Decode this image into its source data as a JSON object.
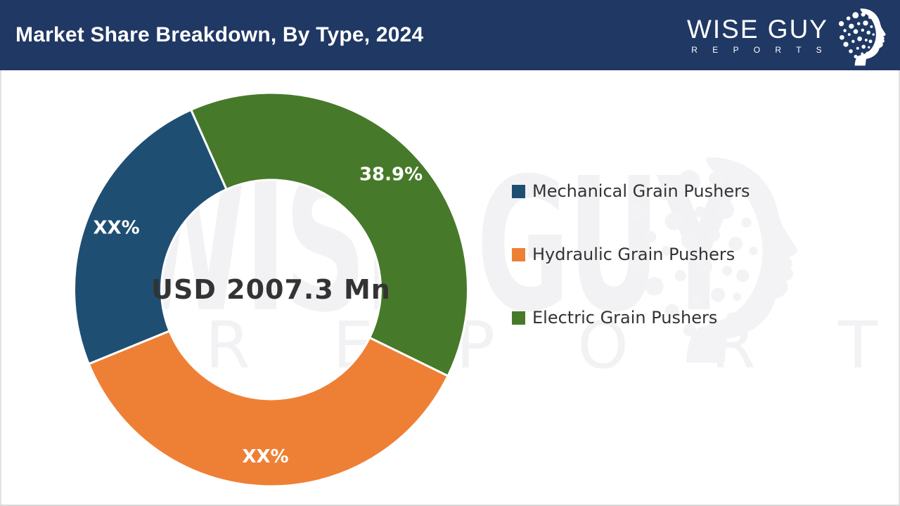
{
  "header": {
    "title": "Market Share Breakdown, By Type, 2024",
    "bg_color": "#203864",
    "logo": {
      "line1": "WISE GUY",
      "line2": "R E P O R T S"
    }
  },
  "watermark": {
    "line1": "WISE GUY",
    "line2": "R E P O R T S"
  },
  "chart_data": {
    "type": "pie",
    "subtype": "donut",
    "title": "Market Share Breakdown, By Type, 2024",
    "center_label": "USD 2007.3 Mn",
    "start_angle_deg": -24,
    "legend_position": "right",
    "segments": [
      {
        "name": "Electric Grain Pushers",
        "display_label": "38.9%",
        "value_pct": 38.9,
        "color": "#47792a"
      },
      {
        "name": "Hydraulic Grain Pushers",
        "display_label": "XX%",
        "value_pct": 36.6,
        "color": "#ee8036"
      },
      {
        "name": "Mechanical Grain Pushers",
        "display_label": "XX%",
        "value_pct": 24.5,
        "color": "#1f4e73"
      }
    ],
    "legend": [
      {
        "label": "Mechanical Grain Pushers",
        "color": "#1f4e73"
      },
      {
        "label": "Hydraulic Grain Pushers",
        "color": "#ee8036"
      },
      {
        "label": "Electric Grain Pushers",
        "color": "#47792a"
      }
    ]
  }
}
